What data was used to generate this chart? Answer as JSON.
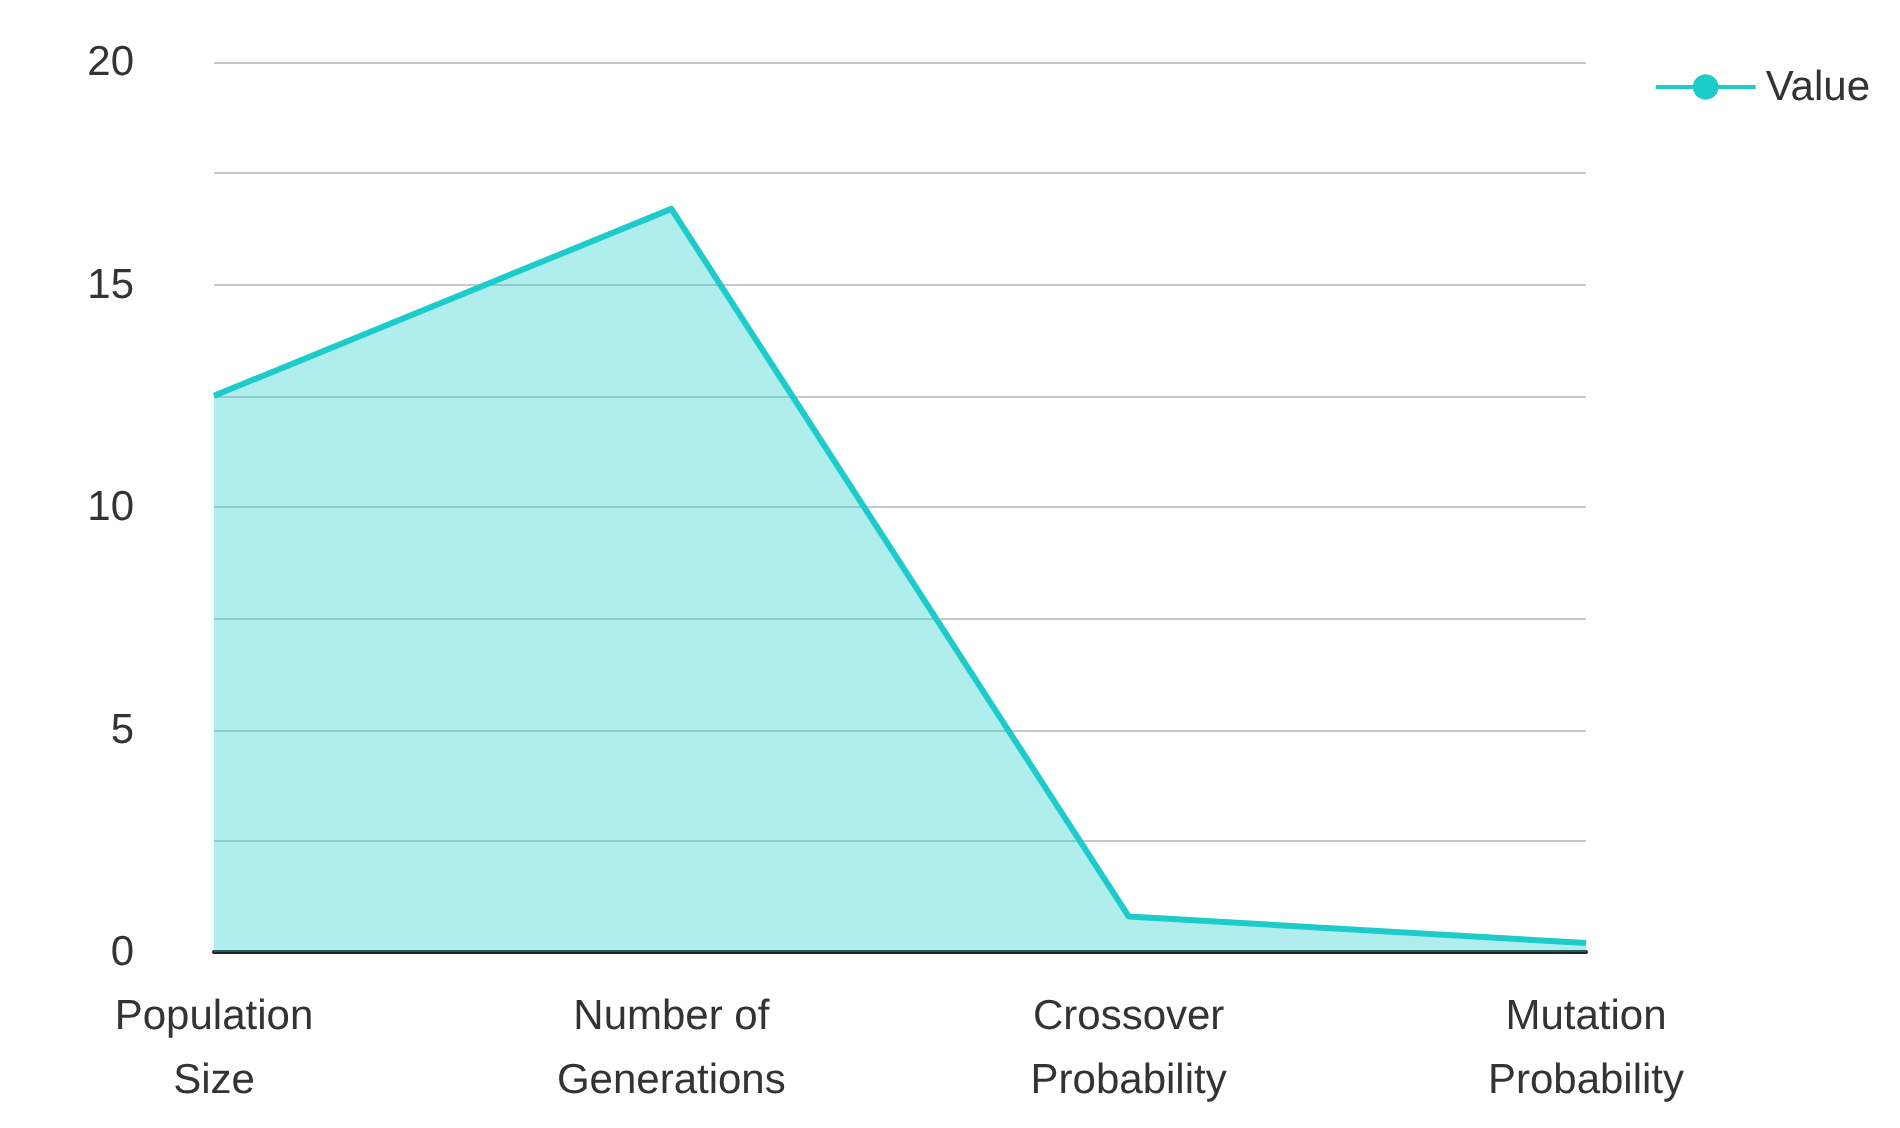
{
  "chart_data": {
    "type": "area",
    "categories": [
      "Population Size",
      "Number of Generations",
      "Crossover Probability",
      "Mutation Probability"
    ],
    "series": [
      {
        "name": "Value",
        "color": "#1ecbcb",
        "values": [
          12.5,
          16.7,
          0.8,
          0.2
        ]
      }
    ],
    "ylim": [
      0,
      20
    ],
    "yticks": [
      0,
      {
        "value": 2.5,
        "label": null
      },
      5,
      {
        "value": 7.5,
        "label": null
      },
      10,
      {
        "value": 12.5,
        "label": null
      },
      15,
      {
        "value": 17.5,
        "label": null
      },
      20
    ],
    "grid": "y",
    "legend": "top right"
  }
}
